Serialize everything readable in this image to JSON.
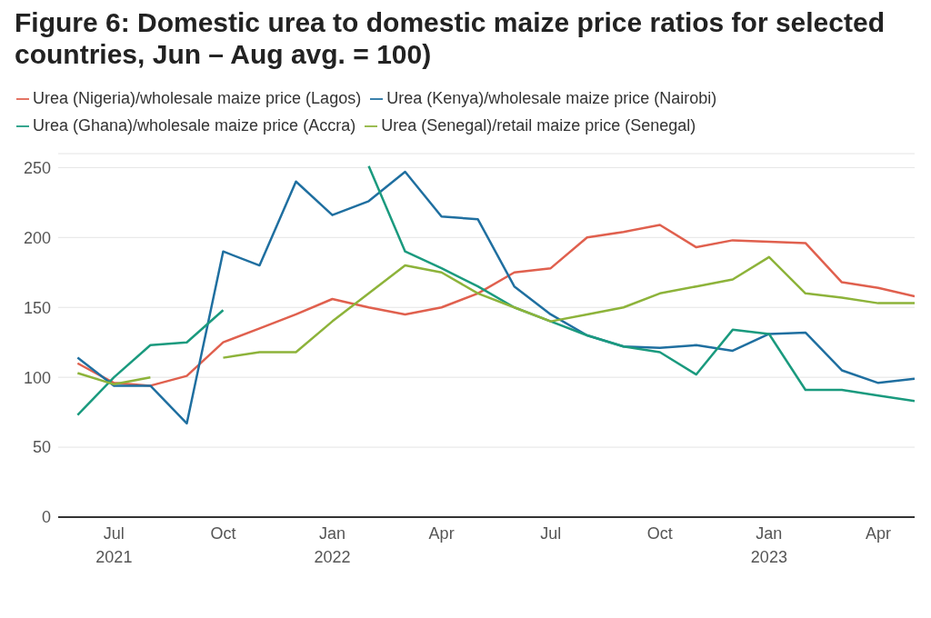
{
  "chart_data": {
    "type": "line",
    "title": "Figure 6: Domestic urea to domestic maize price ratios for selected countries, Jun – Aug avg. = 100)",
    "x": [
      "2021-06",
      "2021-07",
      "2021-08",
      "2021-09",
      "2021-10",
      "2021-11",
      "2021-12",
      "2022-01",
      "2022-02",
      "2022-03",
      "2022-04",
      "2022-05",
      "2022-06",
      "2022-07",
      "2022-08",
      "2022-09",
      "2022-10",
      "2022-11",
      "2022-12",
      "2023-01",
      "2023-02",
      "2023-03",
      "2023-04",
      "2023-05"
    ],
    "series": [
      {
        "name": "Urea (Nigeria)/wholesale maize price (Lagos)",
        "color": "#e0604e",
        "values": [
          110,
          96,
          94,
          101,
          125,
          135,
          145,
          156,
          150,
          145,
          150,
          160,
          175,
          178,
          200,
          204,
          209,
          193,
          198,
          197,
          196,
          168,
          164,
          158
        ]
      },
      {
        "name": "Urea (Kenya)/wholesale maize price (Nairobi)",
        "color": "#1f6fa0",
        "values": [
          114,
          94,
          94,
          67,
          190,
          180,
          240,
          216,
          226,
          247,
          215,
          213,
          165,
          145,
          130,
          122,
          121,
          123,
          119,
          131,
          132,
          105,
          96,
          99
        ]
      },
      {
        "name": "Urea (Ghana)/wholesale maize price (Accra)",
        "color": "#1a9a7e",
        "values": [
          73,
          100,
          123,
          125,
          148,
          null,
          null,
          null,
          251,
          190,
          178,
          165,
          150,
          140,
          130,
          122,
          118,
          102,
          134,
          131,
          91,
          91,
          87,
          83
        ]
      },
      {
        "name": "Urea (Senegal)/retail maize price (Senegal)",
        "color": "#8db33a",
        "values": [
          103,
          95,
          100,
          null,
          114,
          118,
          118,
          140,
          160,
          180,
          175,
          160,
          150,
          140,
          145,
          150,
          160,
          165,
          170,
          186,
          160,
          157,
          153,
          153
        ]
      }
    ],
    "xlim": [
      "2021-05-15",
      "2023-05-01"
    ],
    "xticks": [
      {
        "value": "2021-07",
        "label": "Jul 2021"
      },
      {
        "value": "2021-10",
        "label": "Oct"
      },
      {
        "value": "2022-01",
        "label": "Jan 2022"
      },
      {
        "value": "2022-04",
        "label": "Apr"
      },
      {
        "value": "2022-07",
        "label": "Jul"
      },
      {
        "value": "2022-10",
        "label": "Oct"
      },
      {
        "value": "2023-01",
        "label": "Jan 2023"
      },
      {
        "value": "2023-04",
        "label": "Apr"
      }
    ],
    "ylim": [
      0,
      260
    ],
    "yticks": [
      0,
      50,
      100,
      150,
      200,
      250
    ],
    "grid": "y",
    "legend": "top left",
    "marker": "none",
    "line_style": "solid"
  }
}
